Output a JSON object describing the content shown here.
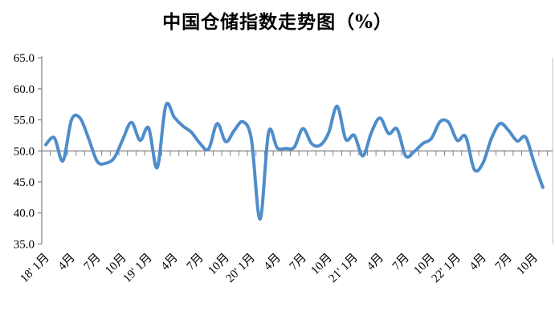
{
  "title": "中国仓储指数走势图（%）",
  "chart_data": {
    "type": "line",
    "title": "中国仓储指数走势图（%）",
    "series_name": "中国仓储指数",
    "x_tick_labels": [
      "18' 1月",
      "4月",
      "7月",
      "10月",
      "19' 1月",
      "4月",
      "7月",
      "10月",
      "20' 1月",
      "4月",
      "7月",
      "10月",
      "21' 1月",
      "4月",
      "7月",
      "10月",
      "22' 1月",
      "4月",
      "7月",
      "10月"
    ],
    "x_label_month_indices": [
      0,
      3,
      6,
      9,
      12,
      15,
      18,
      21,
      24,
      27,
      30,
      33,
      36,
      39,
      42,
      45,
      48,
      51,
      54,
      57
    ],
    "months": [
      "2018-01",
      "2018-02",
      "2018-03",
      "2018-04",
      "2018-05",
      "2018-06",
      "2018-07",
      "2018-08",
      "2018-09",
      "2018-10",
      "2018-11",
      "2018-12",
      "2019-01",
      "2019-02",
      "2019-03",
      "2019-04",
      "2019-05",
      "2019-06",
      "2019-07",
      "2019-08",
      "2019-09",
      "2019-10",
      "2019-11",
      "2019-12",
      "2020-01",
      "2020-02",
      "2020-03",
      "2020-04",
      "2020-05",
      "2020-06",
      "2020-07",
      "2020-08",
      "2020-09",
      "2020-10",
      "2020-11",
      "2020-12",
      "2021-01",
      "2021-02",
      "2021-03",
      "2021-04",
      "2021-05",
      "2021-06",
      "2021-07",
      "2021-08",
      "2021-09",
      "2021-10",
      "2021-11",
      "2021-12",
      "2022-01",
      "2022-02",
      "2022-03",
      "2022-04",
      "2022-05",
      "2022-06",
      "2022-07",
      "2022-08",
      "2022-09",
      "2022-10",
      "2022-11"
    ],
    "values": [
      51.0,
      52.1,
      48.4,
      55.0,
      55.3,
      52.0,
      48.3,
      48.0,
      48.9,
      51.9,
      54.6,
      51.7,
      53.7,
      47.3,
      57.3,
      55.4,
      54.0,
      53.0,
      51.2,
      50.3,
      54.4,
      51.5,
      53.3,
      54.7,
      51.8,
      39.0,
      53.0,
      50.5,
      50.4,
      50.6,
      53.6,
      51.2,
      50.9,
      52.9,
      57.2,
      51.9,
      52.5,
      49.2,
      53.0,
      55.3,
      52.8,
      53.5,
      49.2,
      49.9,
      51.2,
      52.0,
      54.7,
      54.6,
      51.7,
      52.3,
      47.0,
      48.0,
      52.0,
      54.4,
      53.3,
      51.6,
      52.2,
      48.0,
      44.1
    ],
    "ylim": [
      35.0,
      65.0
    ],
    "ytick_step": 5,
    "ytick_labels": [
      "65.0",
      "60.0",
      "55.0",
      "50.0",
      "45.0",
      "40.0",
      "35.0"
    ],
    "axis_cross_y": 50.0,
    "grid": "off",
    "legend": "none",
    "smoothed_line": true,
    "line_color": "#4f8dca",
    "axis_color": "#808080",
    "label_color": "#000000",
    "background": "#ffffff"
  }
}
